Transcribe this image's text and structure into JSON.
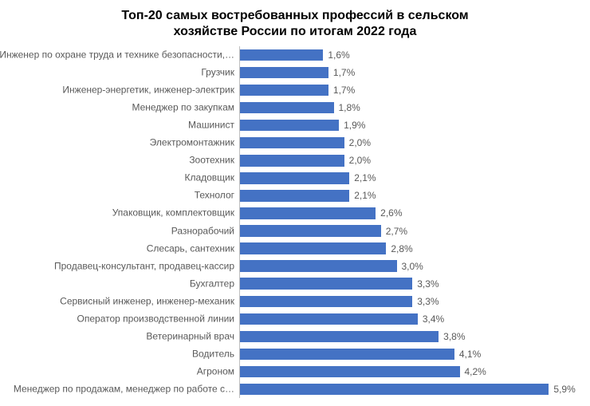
{
  "chart": {
    "type": "bar-horizontal",
    "title_line1": "Топ-20 самых востребованных профессий в сельском",
    "title_line2": "хозяйстве России по итогам 2022 года",
    "title_fontsize": 16,
    "title_color": "#000000",
    "label_fontsize": 12,
    "label_color": "#595959",
    "value_fontsize": 12,
    "bar_color": "#4472c4",
    "background_color": "#ffffff",
    "baseline_color": "#bfbfbf",
    "xmax": 6.0,
    "bar_gap_ratio": 0.35,
    "items": [
      {
        "label": "Инженер по охране труда и технике безопасности,…",
        "value": 1.6,
        "value_label": "1,6%"
      },
      {
        "label": "Грузчик",
        "value": 1.7,
        "value_label": "1,7%"
      },
      {
        "label": "Инженер-энергетик, инженер-электрик",
        "value": 1.7,
        "value_label": "1,7%"
      },
      {
        "label": "Менеджер по закупкам",
        "value": 1.8,
        "value_label": "1,8%"
      },
      {
        "label": "Машинист",
        "value": 1.9,
        "value_label": "1,9%"
      },
      {
        "label": "Электромонтажник",
        "value": 2.0,
        "value_label": "2,0%"
      },
      {
        "label": "Зоотехник",
        "value": 2.0,
        "value_label": "2,0%"
      },
      {
        "label": "Кладовщик",
        "value": 2.1,
        "value_label": "2,1%"
      },
      {
        "label": "Технолог",
        "value": 2.1,
        "value_label": "2,1%"
      },
      {
        "label": "Упаковщик, комплектовщик",
        "value": 2.6,
        "value_label": "2,6%"
      },
      {
        "label": "Разнорабочий",
        "value": 2.7,
        "value_label": "2,7%"
      },
      {
        "label": "Слесарь, сантехник",
        "value": 2.8,
        "value_label": "2,8%"
      },
      {
        "label": "Продавец-консультант, продавец-кассир",
        "value": 3.0,
        "value_label": "3,0%"
      },
      {
        "label": "Бухгалтер",
        "value": 3.3,
        "value_label": "3,3%"
      },
      {
        "label": "Сервисный инженер, инженер-механик",
        "value": 3.3,
        "value_label": "3,3%"
      },
      {
        "label": "Оператор производственной линии",
        "value": 3.4,
        "value_label": "3,4%"
      },
      {
        "label": "Ветеринарный врач",
        "value": 3.8,
        "value_label": "3,8%"
      },
      {
        "label": "Водитель",
        "value": 4.1,
        "value_label": "4,1%"
      },
      {
        "label": "Агроном",
        "value": 4.2,
        "value_label": "4,2%"
      },
      {
        "label": "Менеджер по продажам, менеджер по работе с…",
        "value": 5.9,
        "value_label": "5,9%"
      }
    ]
  }
}
